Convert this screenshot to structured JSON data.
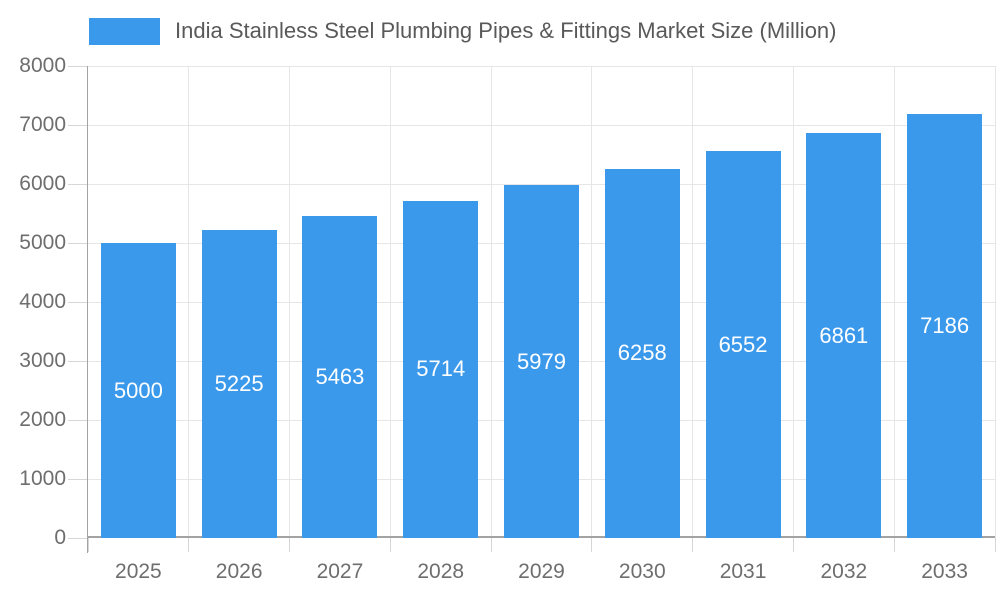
{
  "legend": {
    "series_label": "India Stainless Steel Plumbing Pipes & Fittings Market Size (Million)"
  },
  "colors": {
    "bar": "#3B99EC",
    "gridline": "#e6e6e6",
    "tick": "#d6d6d6",
    "axis": "#a3a3a3",
    "axis_label": "#6e6e6e",
    "title_text": "#595959",
    "bar_label": "#ffffff"
  },
  "chart_data": {
    "type": "bar",
    "title": "India Stainless Steel Plumbing Pipes & Fittings Market Size (Million)",
    "categories": [
      "2025",
      "2026",
      "2027",
      "2028",
      "2029",
      "2030",
      "2031",
      "2032",
      "2033"
    ],
    "values": [
      5000,
      5225,
      5463,
      5714,
      5979,
      6258,
      6552,
      6861,
      7186
    ],
    "value_labels_shown": true,
    "value_label_position": "inside-center",
    "xlabel": "",
    "ylabel": "",
    "ylim": [
      0,
      8000
    ],
    "yticks": [
      0,
      1000,
      2000,
      3000,
      4000,
      5000,
      6000,
      7000,
      8000
    ],
    "grid": true,
    "legend_position": "top-left"
  }
}
